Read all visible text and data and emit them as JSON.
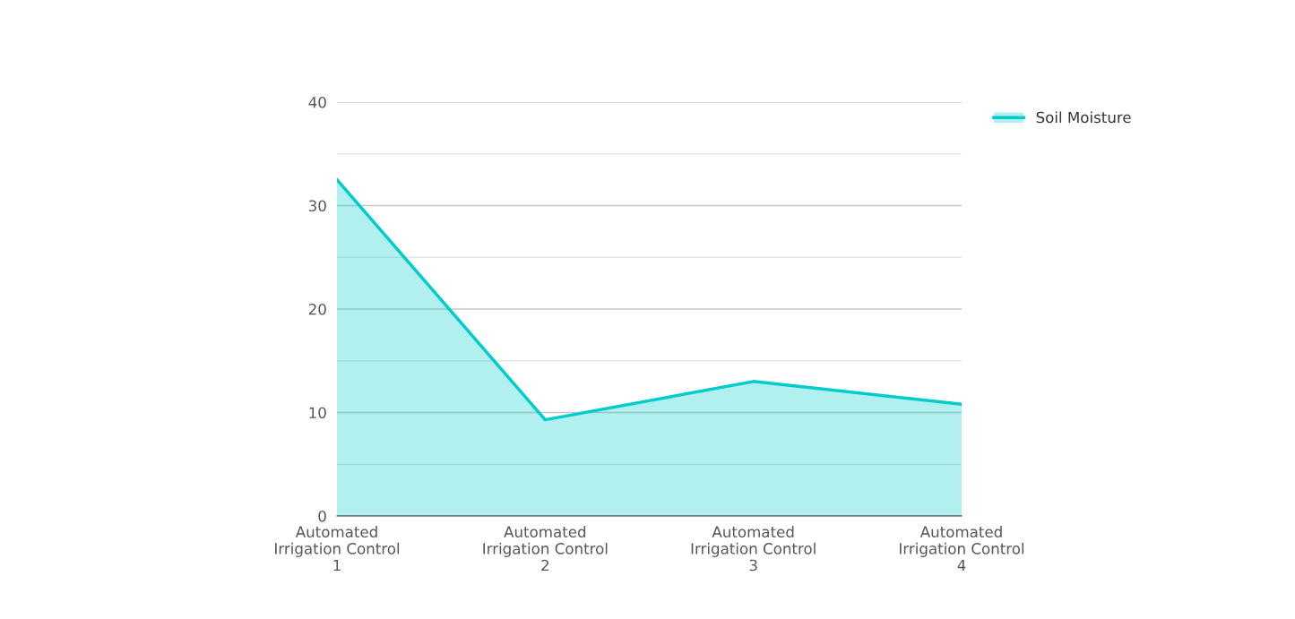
{
  "chart_data": {
    "type": "area",
    "categories": [
      "Automated Irrigation Control 1",
      "Automated Irrigation Control 2",
      "Automated Irrigation Control 3",
      "Automated Irrigation Control 4"
    ],
    "series": [
      {
        "name": "Soil Moisture",
        "color": "#00cccc",
        "values": [
          32.5,
          9.3,
          13.0,
          10.8
        ]
      }
    ],
    "ylim": [
      0,
      40
    ],
    "yticks": [
      0,
      {
        "value": 5,
        "label": null
      },
      10,
      {
        "value": 15,
        "label": null
      },
      20,
      {
        "value": 25,
        "label": null
      },
      30,
      {
        "value": 35,
        "label": null
      },
      40
    ],
    "grid": "y",
    "legend": "top right"
  }
}
